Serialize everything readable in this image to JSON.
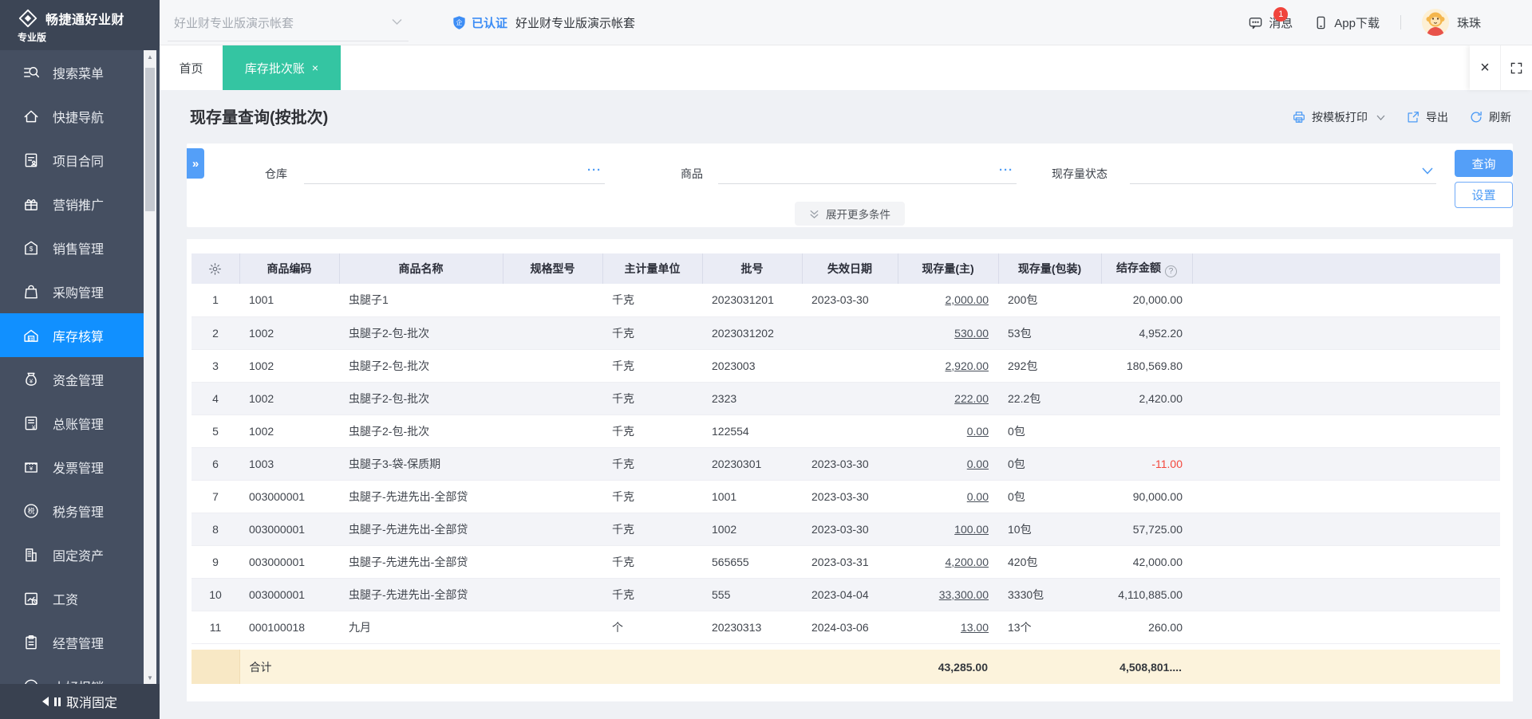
{
  "app": {
    "logo_title": "畅捷通好业财",
    "logo_edition": "专业版"
  },
  "topbar": {
    "account_selector_value": "好业财专业版演示帐套",
    "account_selector_icon": "chevron-down-icon",
    "verified_badge": "已认证",
    "verified_icon": "shield-icon",
    "account_name": "好业财专业版演示帐套",
    "messages_label": "消息",
    "messages_icon": "message-icon",
    "messages_badge": "1",
    "app_download_label": "App下载",
    "app_download_icon": "phone-icon",
    "user_name": "珠珠",
    "user_avatar_icon": "monkey-avatar"
  },
  "tabbar": {
    "home_tab": "首页",
    "active_tab": "库存批次账",
    "close_tab_icon": "close-icon",
    "window_close_icon": "close-icon",
    "window_fullscreen_icon": "fullscreen-icon"
  },
  "sidebar": {
    "items": [
      {
        "label": "搜索菜单",
        "icon": "search-icon",
        "active": false
      },
      {
        "label": "快捷导航",
        "icon": "home-icon",
        "active": false
      },
      {
        "label": "项目合同",
        "icon": "contract-icon",
        "active": false
      },
      {
        "label": "营销推广",
        "icon": "gift-icon",
        "active": false
      },
      {
        "label": "销售管理",
        "icon": "sales-icon",
        "active": false
      },
      {
        "label": "采购管理",
        "icon": "procurement-bag-icon",
        "active": false
      },
      {
        "label": "库存核算",
        "icon": "warehouse-icon",
        "active": true
      },
      {
        "label": "资金管理",
        "icon": "money-bag-icon",
        "active": false
      },
      {
        "label": "总账管理",
        "icon": "ledger-icon",
        "active": false
      },
      {
        "label": "发票管理",
        "icon": "invoice-icon",
        "active": false
      },
      {
        "label": "税务管理",
        "icon": "tax-icon",
        "active": false
      },
      {
        "label": "固定资产",
        "icon": "building-icon",
        "active": false
      },
      {
        "label": "工资",
        "icon": "payroll-icon",
        "active": false
      },
      {
        "label": "经营管理",
        "icon": "clipboard-icon",
        "active": false
      },
      {
        "label": "小好报销",
        "icon": "circle-icon",
        "active": false
      }
    ],
    "unpin_label": "取消固定",
    "unpin_icon": "unpin-icon"
  },
  "page": {
    "title": "现存量查询(按批次)",
    "print_label": "按模板打印",
    "print_icon": "printer-icon",
    "export_label": "导出",
    "export_icon": "export-icon",
    "refresh_label": "刷新",
    "refresh_icon": "refresh-icon"
  },
  "filters": {
    "warehouse_label": "仓库",
    "warehouse_picker_icon": "ellipsis-picker-icon",
    "product_label": "商品",
    "product_picker_icon": "ellipsis-picker-icon",
    "stock_status_label": "现存量状态",
    "stock_status_icon": "chevron-down-icon",
    "query_button": "查询",
    "settings_button": "设置",
    "expand_more_label": "展开更多条件",
    "expand_more_icon": "double-chevron-down-icon",
    "collapse_panel_icon": "double-chevron-right-icon"
  },
  "table": {
    "settings_icon": "gear-icon",
    "help_icon": "question-icon",
    "columns": [
      "商品编码",
      "商品名称",
      "规格型号",
      "主计量单位",
      "批号",
      "失效日期",
      "现存量(主)",
      "现存量(包装)",
      "结存金额"
    ],
    "rows": [
      {
        "no": "1",
        "code": "1001",
        "name": "虫腿子1",
        "spec": "",
        "unit": "千克",
        "batch": "2023031201",
        "expiry": "2023-03-30",
        "qty": "2,000.00",
        "qty_pkg": "200包",
        "amount": "20,000.00"
      },
      {
        "no": "2",
        "code": "1002",
        "name": "虫腿子2-包-批次",
        "spec": "",
        "unit": "千克",
        "batch": "2023031202",
        "expiry": "",
        "qty": "530.00",
        "qty_pkg": "53包",
        "amount": "4,952.20"
      },
      {
        "no": "3",
        "code": "1002",
        "name": "虫腿子2-包-批次",
        "spec": "",
        "unit": "千克",
        "batch": "2023003",
        "expiry": "",
        "qty": "2,920.00",
        "qty_pkg": "292包",
        "amount": "180,569.80"
      },
      {
        "no": "4",
        "code": "1002",
        "name": "虫腿子2-包-批次",
        "spec": "",
        "unit": "千克",
        "batch": "2323",
        "expiry": "",
        "qty": "222.00",
        "qty_pkg": "22.2包",
        "amount": "2,420.00"
      },
      {
        "no": "5",
        "code": "1002",
        "name": "虫腿子2-包-批次",
        "spec": "",
        "unit": "千克",
        "batch": "122554",
        "expiry": "",
        "qty": "0.00",
        "qty_pkg": "0包",
        "amount": ""
      },
      {
        "no": "6",
        "code": "1003",
        "name": "虫腿子3-袋-保质期",
        "spec": "",
        "unit": "千克",
        "batch": "20230301",
        "expiry": "2023-03-30",
        "qty": "0.00",
        "qty_pkg": "0包",
        "amount": "-11.00"
      },
      {
        "no": "7",
        "code": "003000001",
        "name": "虫腿子-先进先出-全部贷",
        "spec": "",
        "unit": "千克",
        "batch": "1001",
        "expiry": "2023-03-30",
        "qty": "0.00",
        "qty_pkg": "0包",
        "amount": "90,000.00"
      },
      {
        "no": "8",
        "code": "003000001",
        "name": "虫腿子-先进先出-全部贷",
        "spec": "",
        "unit": "千克",
        "batch": "1002",
        "expiry": "2023-03-30",
        "qty": "100.00",
        "qty_pkg": "10包",
        "amount": "57,725.00"
      },
      {
        "no": "9",
        "code": "003000001",
        "name": "虫腿子-先进先出-全部贷",
        "spec": "",
        "unit": "千克",
        "batch": "565655",
        "expiry": "2023-03-31",
        "qty": "4,200.00",
        "qty_pkg": "420包",
        "amount": "42,000.00"
      },
      {
        "no": "10",
        "code": "003000001",
        "name": "虫腿子-先进先出-全部贷",
        "spec": "",
        "unit": "千克",
        "batch": "555",
        "expiry": "2023-04-04",
        "qty": "33,300.00",
        "qty_pkg": "3330包",
        "amount": "4,110,885.00"
      },
      {
        "no": "11",
        "code": "000100018",
        "name": "九月",
        "spec": "",
        "unit": "个",
        "batch": "20230313",
        "expiry": "2024-03-06",
        "qty": "13.00",
        "qty_pkg": "13个",
        "amount": "260.00"
      }
    ],
    "total": {
      "label": "合计",
      "qty_total": "43,285.00",
      "amount_total": "4,508,801...."
    }
  },
  "colors": {
    "sidebar_bg": "#454f61",
    "sidebar_active_blue": "#1190ff",
    "tab_active_green": "#34c5a2",
    "primary_blue": "#549ff8",
    "link_blue": "#4c9bf5",
    "verified_blue": "#3d8df5",
    "badge_red": "#f0443c",
    "negative_red": "#f3473c",
    "table_header_bg": "#eaecf5",
    "total_row_bg": "#fcf3dc"
  }
}
